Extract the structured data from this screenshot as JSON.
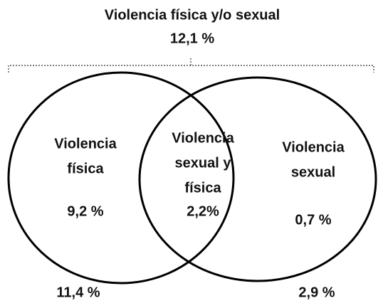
{
  "header": {
    "title": "Violencia física y/o sexual",
    "total": "12,1 %"
  },
  "regions": [
    {
      "lines": [
        "Violencia",
        "física"
      ],
      "value": "9,2 %"
    },
    {
      "lines": [
        "Violencia",
        "sexual y",
        "física"
      ],
      "value": "2,2%"
    },
    {
      "lines": [
        "Violencia",
        "sexual"
      ],
      "value": "0,7 %"
    }
  ],
  "circle_totals": [
    "11,4 %",
    "2,9 %"
  ]
}
